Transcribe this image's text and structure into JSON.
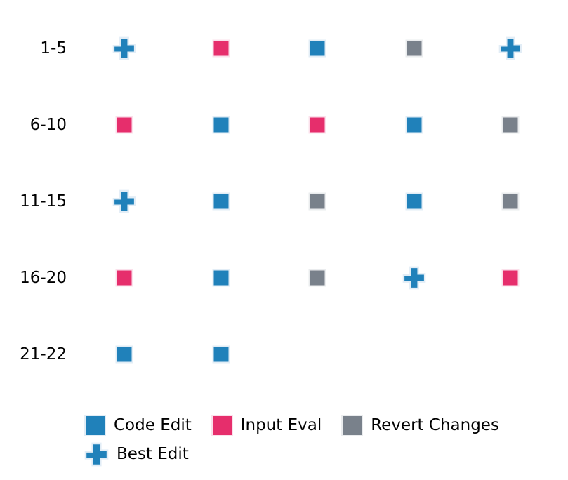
{
  "chart_data": {
    "type": "scatter",
    "title": "",
    "xlabel": "",
    "ylabel": "",
    "grid": false,
    "y_categories": [
      "1-5",
      "6-10",
      "11-15",
      "16-20",
      "21-22"
    ],
    "rows": [
      {
        "label": "1-5",
        "markers": [
          "best_edit",
          "input_eval",
          "code_edit",
          "revert_changes",
          "best_edit"
        ]
      },
      {
        "label": "6-10",
        "markers": [
          "input_eval",
          "code_edit",
          "input_eval",
          "code_edit",
          "revert_changes"
        ]
      },
      {
        "label": "11-15",
        "markers": [
          "best_edit",
          "code_edit",
          "revert_changes",
          "code_edit",
          "revert_changes"
        ]
      },
      {
        "label": "16-20",
        "markers": [
          "input_eval",
          "code_edit",
          "revert_changes",
          "best_edit",
          "input_eval"
        ]
      },
      {
        "label": "21-22",
        "markers": [
          "code_edit",
          "code_edit"
        ]
      }
    ],
    "legend": [
      {
        "id": "code_edit",
        "label": "Code Edit",
        "marker": "square",
        "color": "#2081ba",
        "line": 1
      },
      {
        "id": "input_eval",
        "label": "Input Eval",
        "marker": "square",
        "color": "#e62e6c",
        "line": 1
      },
      {
        "id": "revert_changes",
        "label": "Revert Changes",
        "marker": "square",
        "color": "#79818b",
        "line": 1
      },
      {
        "id": "best_edit",
        "label": "Best Edit",
        "marker": "plus",
        "color": "#2081ba",
        "line": 2
      }
    ],
    "legend_position": "bottom-left",
    "colors": {
      "code_edit": "#2081ba",
      "input_eval": "#e62e6c",
      "revert_changes": "#79818b",
      "best_edit": "#2081ba",
      "background": "#ffffff",
      "text": "#000000"
    }
  }
}
